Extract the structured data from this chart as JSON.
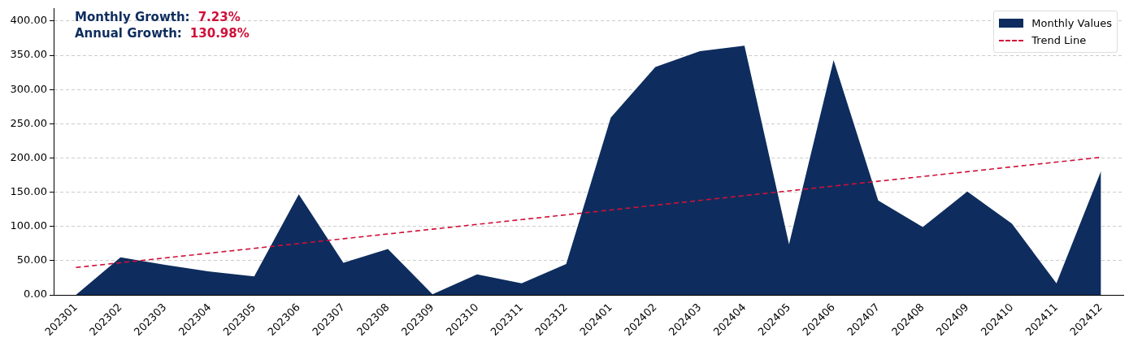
{
  "chart_data": {
    "type": "area",
    "categories": [
      "202301",
      "202302",
      "202303",
      "202304",
      "202305",
      "202306",
      "202307",
      "202308",
      "202309",
      "202310",
      "202311",
      "202312",
      "202401",
      "202402",
      "202403",
      "202404",
      "202405",
      "202406",
      "202407",
      "202408",
      "202409",
      "202410",
      "202411",
      "202412"
    ],
    "series": [
      {
        "name": "Monthly Values",
        "color": "#0e2d5e",
        "values": [
          0,
          55,
          44,
          34,
          27,
          147,
          47,
          67,
          1,
          30,
          17,
          45,
          259,
          333,
          356,
          364,
          74,
          343,
          138,
          99,
          151,
          104,
          17,
          181
        ]
      },
      {
        "name": "Trend Line",
        "type": "line",
        "color": "#d0103a",
        "line_style": "dashed",
        "values": [
          40,
          47,
          54,
          61,
          68,
          75,
          82,
          89,
          96,
          103,
          110,
          117,
          124,
          131,
          138,
          145,
          152,
          159,
          166,
          173,
          180,
          187,
          194,
          201
        ]
      }
    ],
    "ylim": [
      0,
      418
    ],
    "yticks": [
      {
        "value": 0,
        "label": "0.00"
      },
      {
        "value": 50,
        "label": "50.00"
      },
      {
        "value": 100,
        "label": "100.00"
      },
      {
        "value": 150,
        "label": "150.00"
      },
      {
        "value": 200,
        "label": "200.00"
      },
      {
        "value": 250,
        "label": "250.00"
      },
      {
        "value": 300,
        "label": "300.00"
      },
      {
        "value": 350,
        "label": "350.00"
      },
      {
        "value": 400,
        "label": "400.00"
      }
    ],
    "grid": "y",
    "legend": "top right",
    "marker": "none",
    "annotations": [
      "Monthly Growth:",
      "7.23%",
      "Annual Growth:",
      "130.98%"
    ]
  }
}
